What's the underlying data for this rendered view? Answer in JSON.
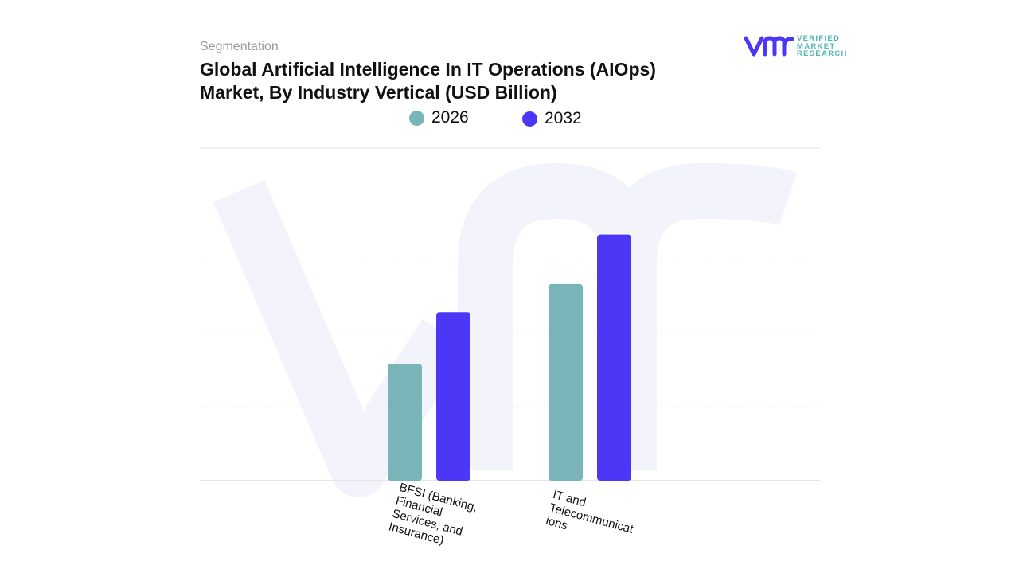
{
  "header": {
    "section": "Segmentation",
    "logo_text": [
      "VERIFIED",
      "MARKET",
      "RESEARCH"
    ],
    "watermark_text": "vmr"
  },
  "chart_data": {
    "type": "bar",
    "title": "Global Artificial Intelligence In IT Operations (AIOps) Market, By Industry Vertical (USD Billion)",
    "categories": [
      [
        "BFSI (Banking,",
        "Financial",
        "Services, and",
        "Insurance)"
      ],
      [
        "IT and",
        "Telecommunicat",
        "ions"
      ]
    ],
    "series": [
      {
        "name": "2026",
        "color": "#79b5b8",
        "values": [
          1.58,
          2.66
        ]
      },
      {
        "name": "2032",
        "color": "#4b37f5",
        "values": [
          2.28,
          3.33
        ]
      }
    ],
    "ylim": [
      0,
      4.5
    ],
    "gridlines": [
      1,
      2,
      3,
      4
    ],
    "grid": true,
    "y_tick_labels_shown": false,
    "legend_position": "top-center",
    "note": "values estimated relative to gridlines; no axis values printed"
  }
}
